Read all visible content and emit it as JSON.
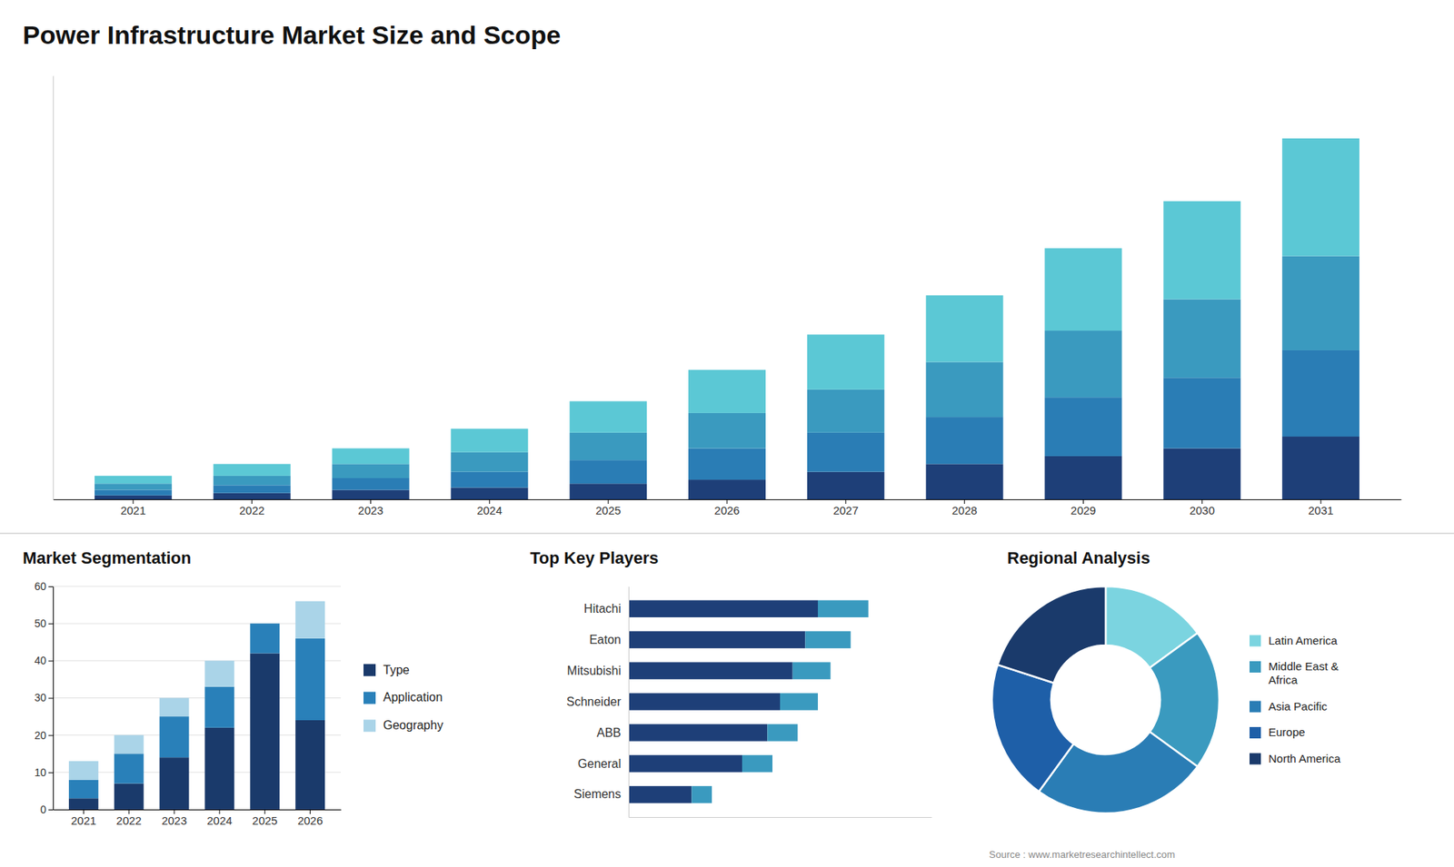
{
  "chart_data": [
    {
      "type": "bar",
      "title": "Power Infrastructure Market Size and Scope",
      "stacked": true,
      "categories": [
        "2021",
        "2022",
        "2023",
        "2024",
        "2025",
        "2026",
        "2027",
        "2028",
        "2029",
        "2030",
        "2031"
      ],
      "series": [
        {
          "color": "#1e3f78",
          "values": [
            0.5,
            0.8,
            1.2,
            1.5,
            2.0,
            2.5,
            3.5,
            4.5,
            5.5,
            6.5,
            8.0
          ]
        },
        {
          "color": "#2a7db5",
          "values": [
            0.7,
            1.0,
            1.5,
            2.0,
            3.0,
            4.0,
            5.0,
            6.0,
            7.5,
            9.0,
            11.0
          ]
        },
        {
          "color": "#3a9abf",
          "values": [
            0.8,
            1.2,
            1.8,
            2.5,
            3.5,
            4.5,
            5.5,
            7.0,
            8.5,
            10.0,
            12.0
          ]
        },
        {
          "color": "#5bc8d5",
          "values": [
            1.0,
            1.5,
            2.0,
            3.0,
            4.0,
            5.5,
            7.0,
            8.5,
            10.5,
            12.5,
            15.0
          ]
        }
      ],
      "ylim": [
        0,
        54
      ],
      "tick_labels": "x"
    },
    {
      "type": "bar",
      "title": "Market Segmentation",
      "stacked": true,
      "categories": [
        "2021",
        "2022",
        "2023",
        "2024",
        "2025",
        "2026"
      ],
      "series": [
        {
          "name": "Type",
          "color": "#1a3a6b",
          "values": [
            3,
            7,
            14,
            22,
            42,
            24
          ]
        },
        {
          "name": "Application",
          "color": "#2980b9",
          "values": [
            5,
            8,
            11,
            11,
            8,
            22
          ]
        },
        {
          "name": "Geography",
          "color": "#aad4e8",
          "values": [
            5,
            5,
            5,
            7,
            0,
            10
          ]
        }
      ],
      "ylim": [
        0,
        60
      ],
      "yticks": [
        0,
        10,
        20,
        30,
        40,
        50,
        60
      ],
      "grid": true,
      "legend": "right"
    },
    {
      "type": "bar",
      "title": "Top Key Players",
      "stacked": true,
      "orientation": "horizontal",
      "categories": [
        "Hitachi",
        "Eaton",
        "Mitsubishi",
        "Schneider",
        "ABB",
        "General",
        "Siemens"
      ],
      "series": [
        {
          "color": "#1e3f78",
          "values": [
            7.5,
            7.0,
            6.5,
            6.0,
            5.5,
            4.5,
            2.5
          ]
        },
        {
          "color": "#3a9abf",
          "values": [
            2.0,
            1.8,
            1.5,
            1.5,
            1.2,
            1.2,
            0.8
          ]
        }
      ],
      "xlim": [
        0,
        12
      ],
      "tick_labels": "y"
    },
    {
      "type": "donut",
      "title": "Regional Analysis",
      "categories": [
        "Latin America",
        "Middle East &\nAfrica",
        "Asia Pacific",
        "Europe",
        "North America"
      ],
      "values": [
        15,
        20,
        25,
        20,
        20
      ],
      "colors": [
        "#7bd4e0",
        "#3a9abf",
        "#2a7db5",
        "#1e5fa8",
        "#1a3a6b"
      ],
      "legend": "right"
    }
  ],
  "source": "Source : www.marketresearchintellect.com"
}
